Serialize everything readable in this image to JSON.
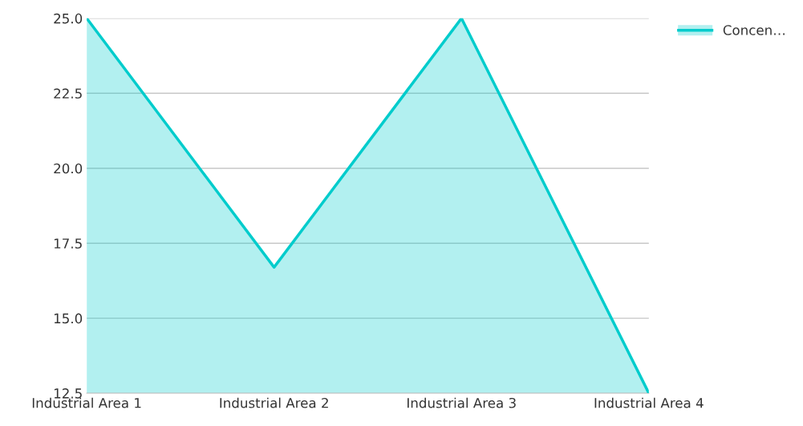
{
  "chart_data": {
    "type": "area",
    "categories": [
      "Industrial Area 1",
      "Industrial Area 2",
      "Industrial Area 3",
      "Industrial Area 4"
    ],
    "series": [
      {
        "name": "Concen…",
        "color": "#00cccc",
        "values": [
          25.0,
          16.7,
          25.0,
          12.5
        ]
      }
    ],
    "ylim": [
      12.5,
      25.0
    ],
    "yticks": [
      {
        "value": 12.5,
        "label": "12.5"
      },
      {
        "value": 15,
        "label": "15.0"
      },
      {
        "value": 17.5,
        "label": "17.5"
      },
      {
        "value": 20,
        "label": "20.0"
      },
      {
        "value": 22.5,
        "label": "22.5"
      },
      {
        "value": 25,
        "label": "25.0"
      }
    ],
    "grid": "y",
    "legend": "top right"
  }
}
